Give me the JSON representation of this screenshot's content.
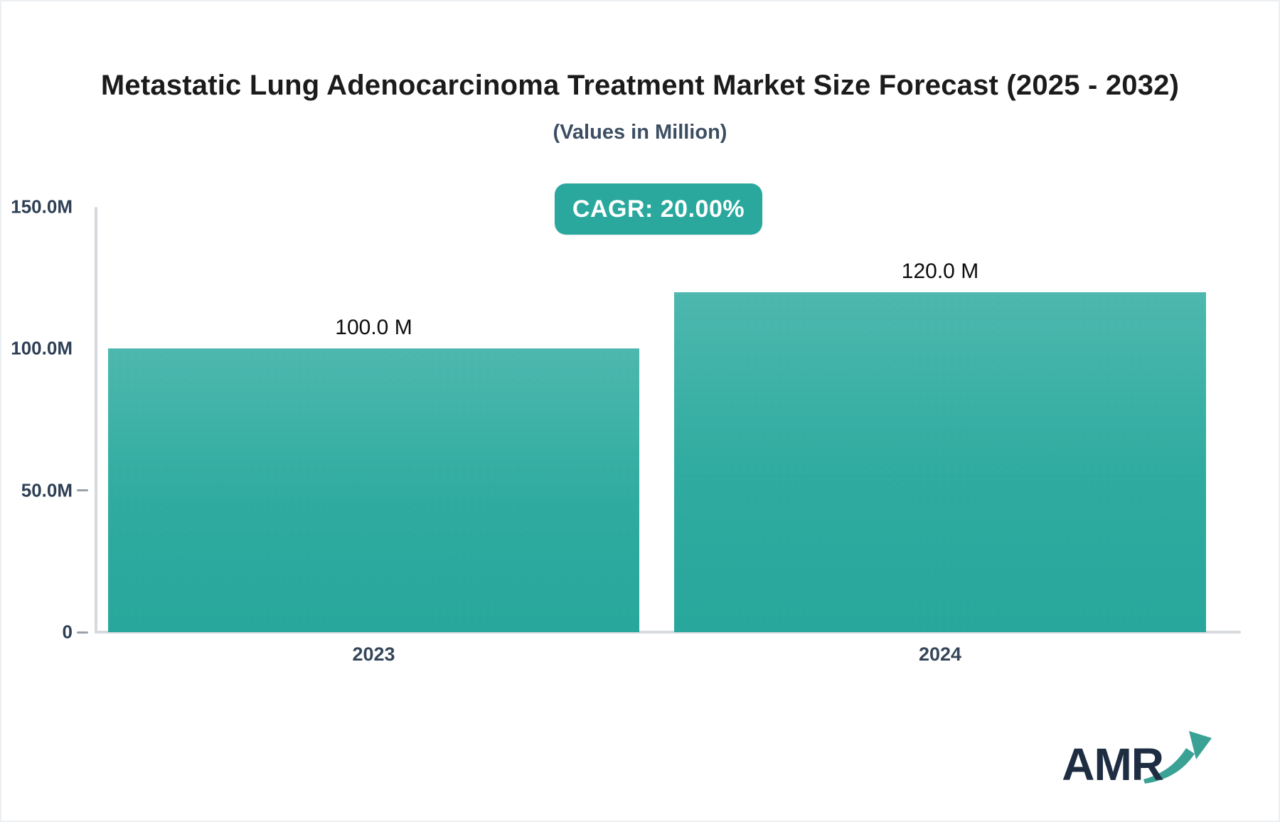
{
  "chart_data": {
    "type": "bar",
    "title": "Metastatic Lung Adenocarcinoma Treatment Market Size Forecast (2025 - 2032)",
    "subtitle": "(Values in Million)",
    "cagr_badge": "CAGR: 20.00%",
    "categories": [
      "2023",
      "2024"
    ],
    "values": [
      100.0,
      120.0
    ],
    "value_labels": [
      "100.0 M",
      "120.0 M"
    ],
    "xlabel": "",
    "ylabel": "",
    "ylim": [
      0,
      150
    ],
    "yticks": [
      "150.0M",
      "100.0M",
      "50.0M",
      "0"
    ],
    "grid": "off",
    "legend": "none"
  },
  "logo": {
    "text": "AMR"
  },
  "colors": {
    "accent_teal": "#2aa89d",
    "bar_gradient_top": "#4db8ae",
    "bar_gradient_bottom": "#28a79c",
    "axis_line": "#d6d9dd",
    "tick_text": "#2e3f55",
    "title_text": "#1b1b1b",
    "subtitle_text": "#3d4e63",
    "value_label_text": "#0d0d0d",
    "logo_text": "#1e2d42"
  }
}
